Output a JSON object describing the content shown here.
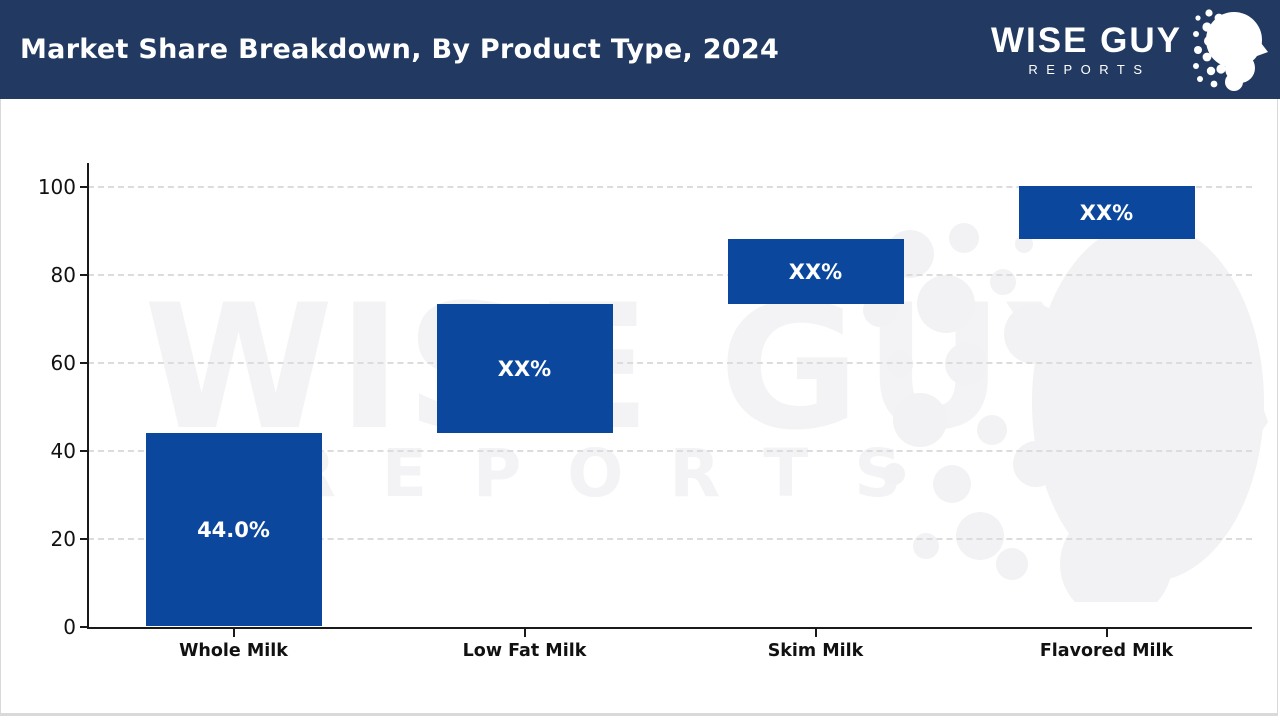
{
  "header": {
    "title": "Market Share Breakdown, By Product Type, 2024",
    "logo": {
      "line1": "WISE GUY",
      "line2": "REPORTS"
    }
  },
  "watermark": {
    "line1": "WISE GUY",
    "line2": "REPORTS"
  },
  "chart_data": {
    "type": "bar",
    "subtype": "waterfall",
    "title": "Market Share Breakdown, By Product Type, 2024",
    "categories": [
      "Whole Milk",
      "Low Fat Milk",
      "Skim Milk",
      "Flavored Milk"
    ],
    "segments": [
      {
        "category": "Whole Milk",
        "start": 0,
        "end": 44.0,
        "label": "44.0%"
      },
      {
        "category": "Low Fat Milk",
        "start": 44.0,
        "end": 73.4,
        "label": "XX%"
      },
      {
        "category": "Skim Milk",
        "start": 73.4,
        "end": 88.2,
        "label": "XX%"
      },
      {
        "category": "Flavored Milk",
        "start": 88.2,
        "end": 100.3,
        "label": "XX%"
      }
    ],
    "xlabel": "",
    "ylabel": "",
    "yticks": [
      0,
      20,
      40,
      60,
      80,
      100
    ],
    "ylim": [
      0,
      105
    ],
    "grid": "horizontal-dashed",
    "legend": "none",
    "bar_color": "#0b479d",
    "bar_label_color": "#ffffff"
  },
  "colors": {
    "header_bg": "#223a62",
    "bar": "#0b479d",
    "axis": "#1a1a1a",
    "gridline": "#dcdcdc",
    "watermark": "#f3f3f5",
    "page_border": "#d9d9d9"
  }
}
